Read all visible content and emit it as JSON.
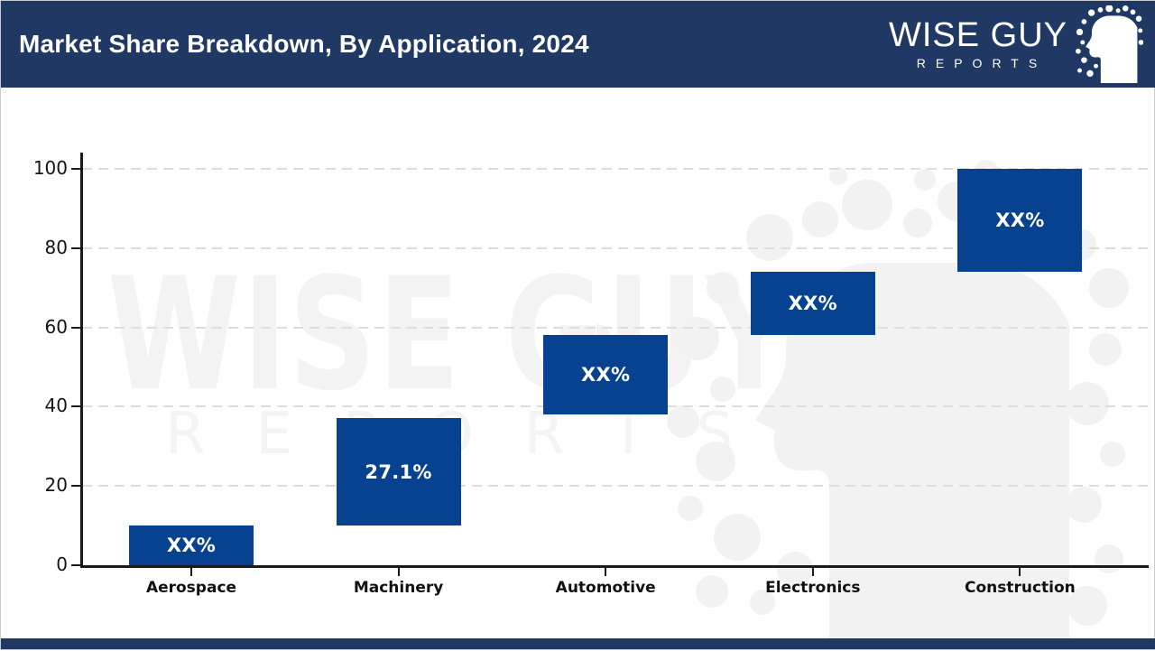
{
  "header": {
    "title": "Market Share Breakdown, By Application, 2024",
    "logo": {
      "line1": "WISE GUY",
      "line2": "REPORTS"
    }
  },
  "watermark": {
    "line1": "WISE GUY",
    "line2": "REPORTS"
  },
  "colors": {
    "header_bg": "#1f3864",
    "footer_bg": "#1f3864",
    "bar": "#06428f",
    "axis": "#1a1a1a",
    "grid": "#dcdcdc",
    "bar_label": "#ffffff",
    "watermark": "#f3f3f3"
  },
  "chart_data": {
    "type": "bar",
    "subtype": "waterfall-floating-bars",
    "title": "Market Share Breakdown, By Application, 2024",
    "categories": [
      "Aerospace",
      "Machinery",
      "Automotive",
      "Electronics",
      "Construction"
    ],
    "segments": [
      {
        "category": "Aerospace",
        "start": 0,
        "end": 10,
        "label": "XX%"
      },
      {
        "category": "Machinery",
        "start": 10,
        "end": 37.1,
        "label": "27.1%"
      },
      {
        "category": "Automotive",
        "start": 38,
        "end": 58,
        "label": "XX%"
      },
      {
        "category": "Electronics",
        "start": 58,
        "end": 74,
        "label": "XX%"
      },
      {
        "category": "Construction",
        "start": 74,
        "end": 100,
        "label": "XX%"
      }
    ],
    "xlabel": "",
    "ylabel": "",
    "ylim": [
      0,
      100
    ],
    "y_ticks": [
      0,
      20,
      40,
      60,
      80,
      100
    ],
    "grid": "horizontal dashed",
    "legend": "none"
  }
}
